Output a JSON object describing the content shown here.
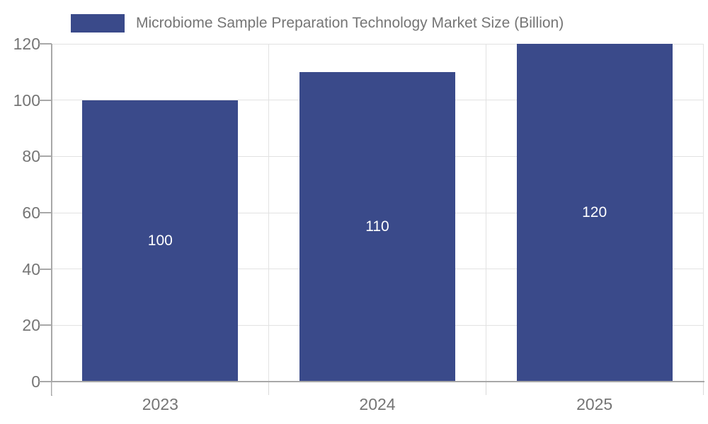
{
  "chart_data": {
    "type": "bar",
    "title": "Microbiome Sample Preparation Technology Market Size (Billion)",
    "legend": {
      "position": "top",
      "entries": [
        "Microbiome Sample Preparation Technology Market Size (Billion)"
      ]
    },
    "categories": [
      "2023",
      "2024",
      "2025"
    ],
    "values": [
      100,
      110,
      120
    ],
    "data_labels": [
      "100",
      "110",
      "120"
    ],
    "xlabel": "",
    "ylabel": "",
    "ylim": [
      0,
      120
    ],
    "yticks": [
      0,
      20,
      40,
      60,
      80,
      100,
      120
    ],
    "grid": true,
    "colors": {
      "bar": "#3A4A8A",
      "data_label": "#ffffff",
      "axis_line": "#a8a8a8",
      "gridline": "#e2e2e2",
      "tick_label": "#757575"
    }
  }
}
